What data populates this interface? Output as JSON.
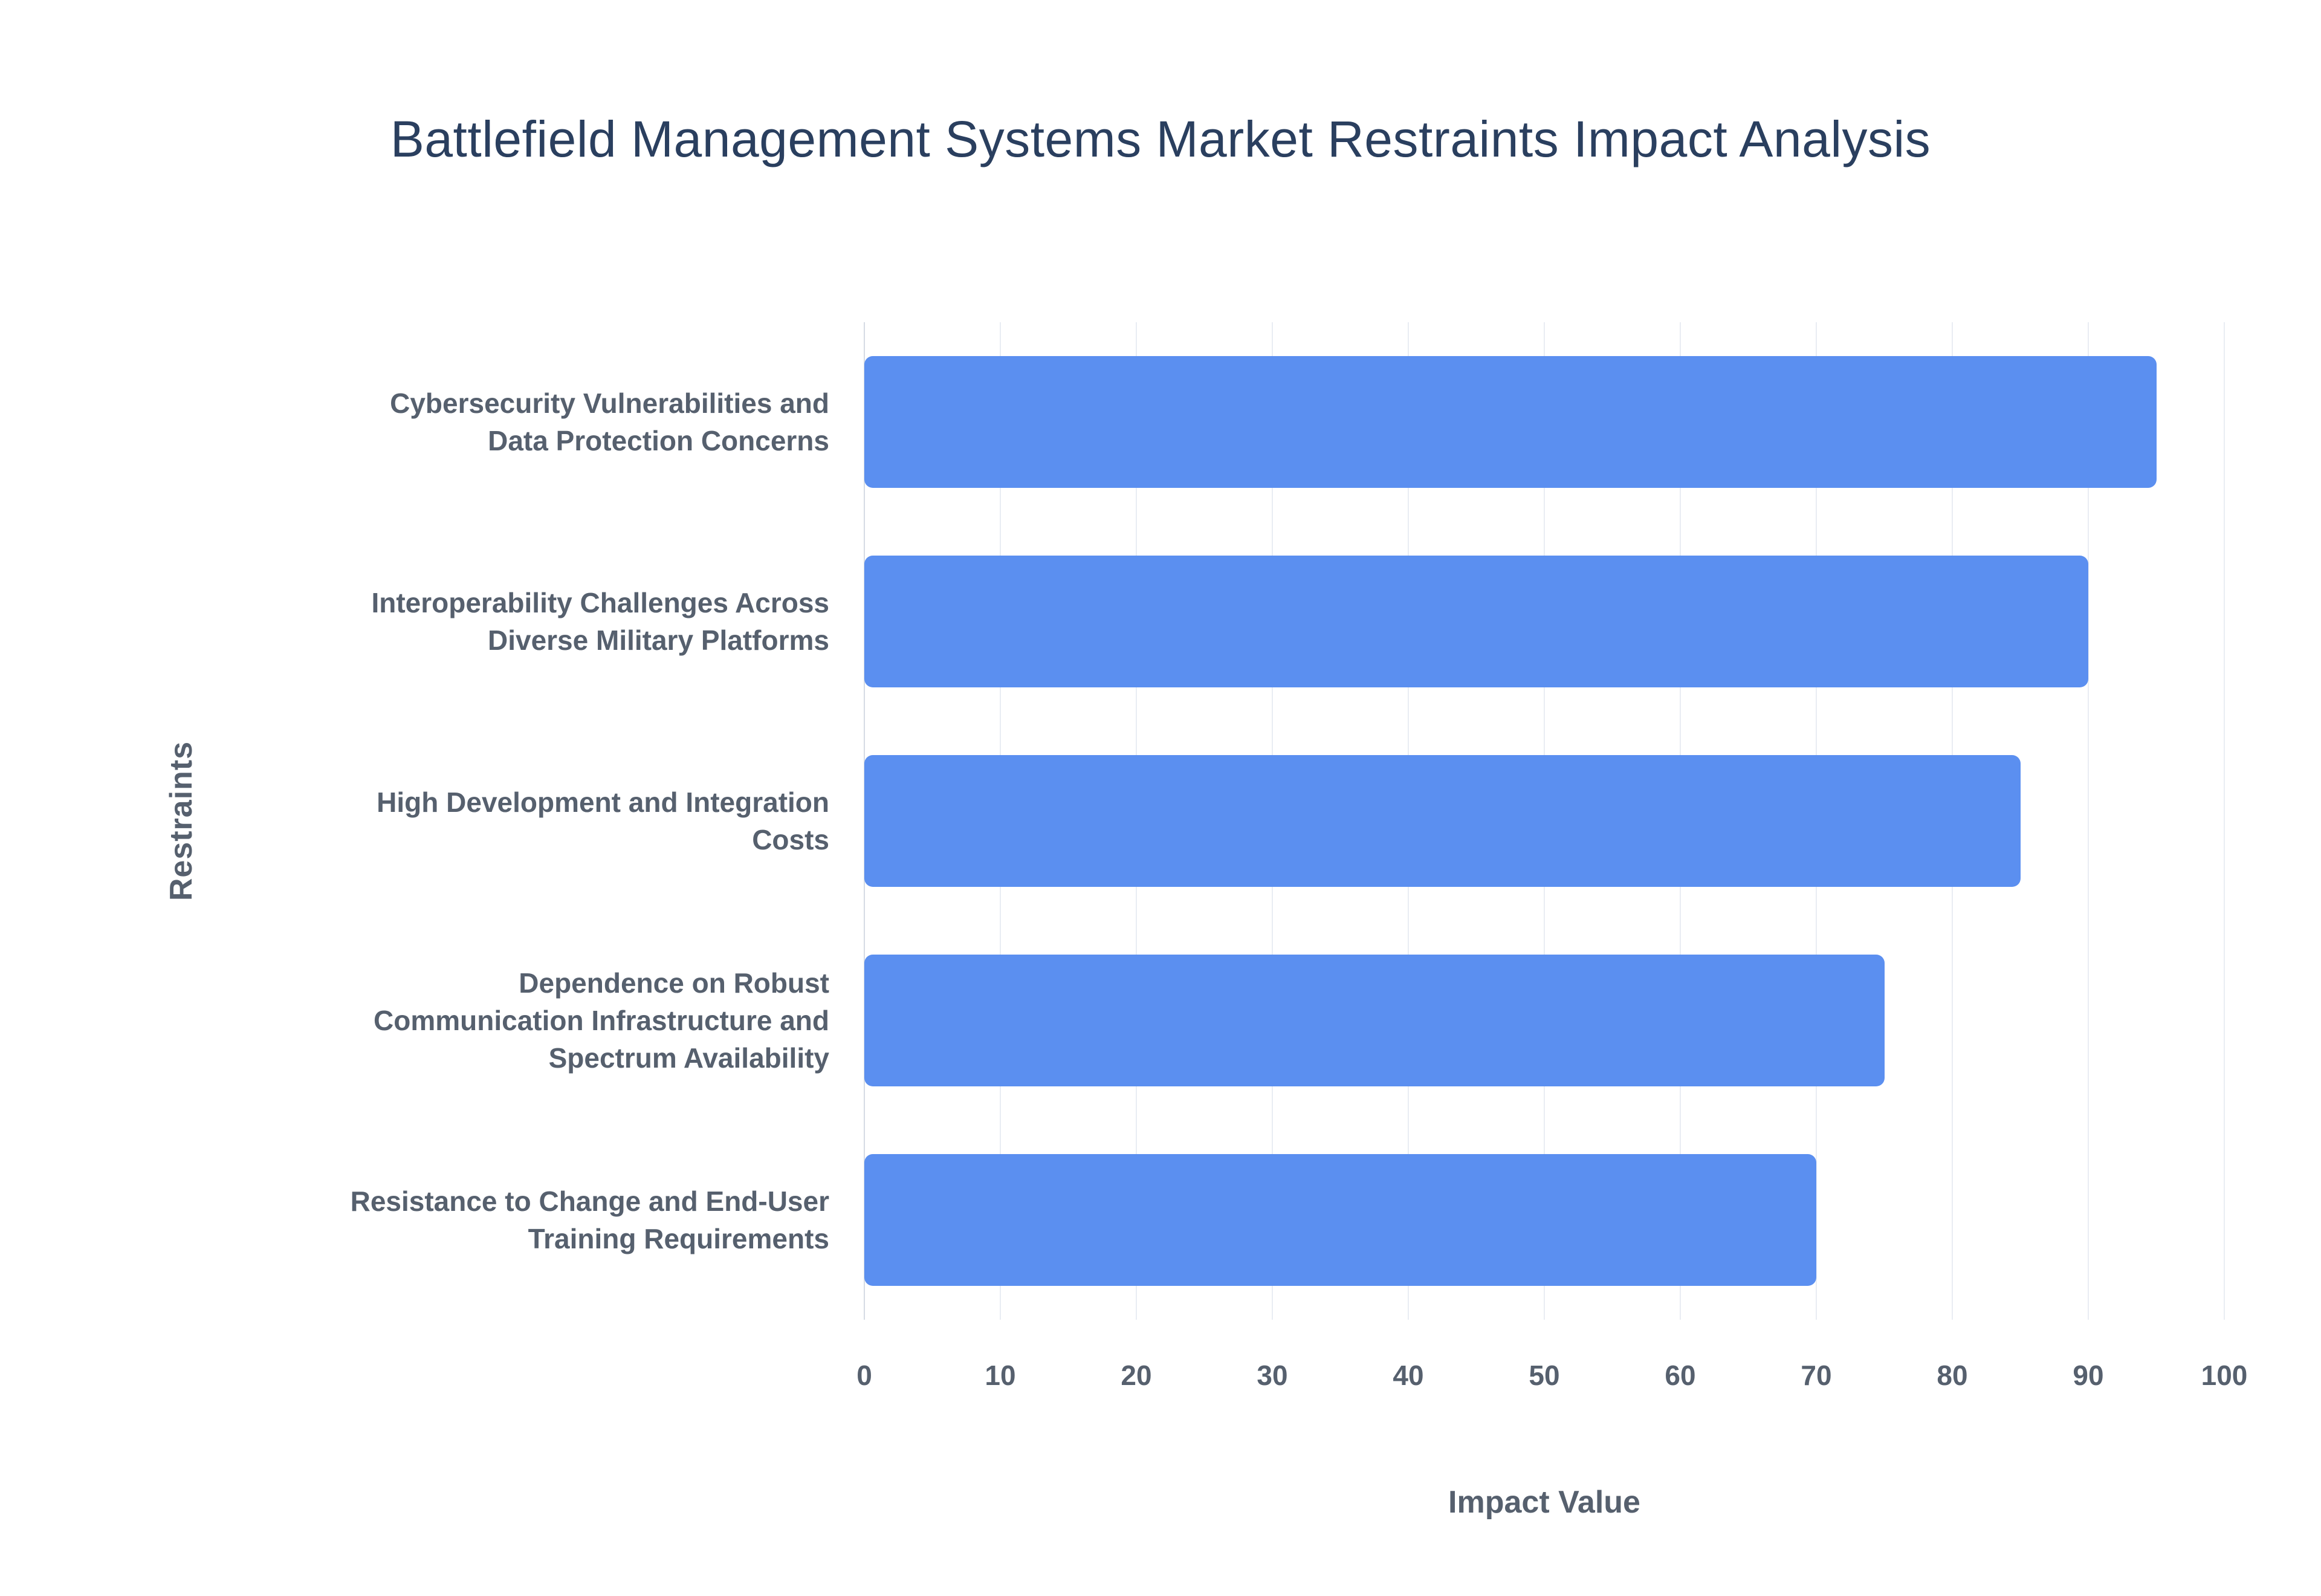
{
  "page": {
    "background": "#ffffff"
  },
  "chart_data": {
    "type": "bar",
    "orientation": "horizontal",
    "title": "Battlefield Management Systems Market Restraints Impact Analysis",
    "xlabel": "Impact Value",
    "ylabel": "Restraints",
    "categories": [
      "Cybersecurity Vulnerabilities and Data Protection Concerns",
      "Interoperability Challenges Across Diverse Military Platforms",
      "High Development and Integration Costs",
      "Dependence on Robust Communication Infrastructure and Spectrum Availability",
      "Resistance to Change and End-User Training Requirements"
    ],
    "values": [
      95,
      90,
      85,
      75,
      70
    ],
    "xlim": [
      0,
      100
    ],
    "xticks": [
      0,
      10,
      20,
      30,
      40,
      50,
      60,
      70,
      80,
      90,
      100
    ],
    "bar_color": "#5b8ff0",
    "grid": true,
    "legend": "none"
  },
  "style": {
    "title_color": "#2a3f5f",
    "label_color": "#56606e",
    "grid_color": "#e9edf3",
    "zero_line_color": "#d5dbe4"
  }
}
